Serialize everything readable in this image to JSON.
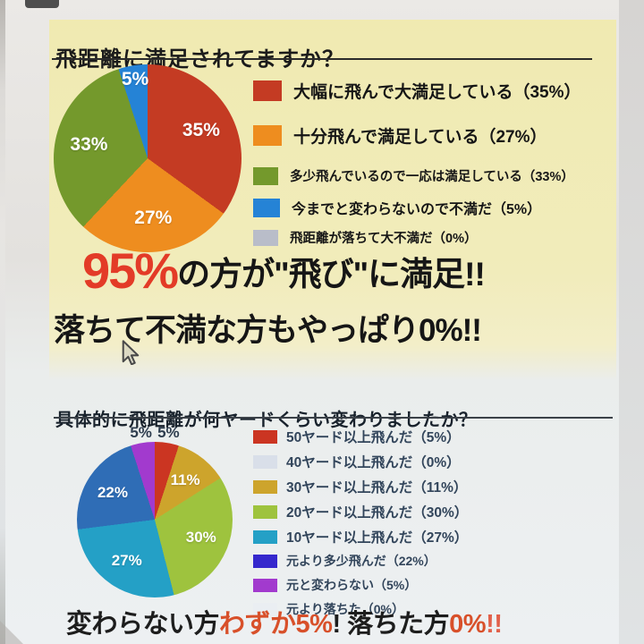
{
  "section1": {
    "title": "飛距離に満足されてますか？",
    "panel_color": "#f1ecba",
    "headline": {
      "line1_em": "95%",
      "line1_rest": "の方が\"飛び\"に満足!!",
      "line2": "落ちて不満な方もやっぱり0%!!",
      "em_color": "#e33b27"
    }
  },
  "section2": {
    "title": "具体的に飛距離が何ヤードくらい変わりましたか？",
    "footline": [
      {
        "text": "変わらない方",
        "color": "#1d1d1d"
      },
      {
        "text": "わずか5%",
        "color": "#d8502a"
      },
      {
        "text": "! ",
        "color": "#1d1d1d"
      },
      {
        "text": "落ちた方",
        "color": "#1d1d1d"
      },
      {
        "text": "0%",
        "color": "#d8502a"
      },
      {
        "text": "!!",
        "color": "#e2604a"
      }
    ]
  },
  "chart_data": [
    {
      "type": "pie",
      "title": "飛距離に満足されてますか？",
      "legend_position": "right",
      "direction": "clockwise",
      "start_angle_deg": 0,
      "small_label_outside": false,
      "items": [
        {
          "label": "大幅に飛んで大満足している（35%）",
          "value": 35,
          "color": "#c43b23"
        },
        {
          "label": "十分飛んで満足している（27%）",
          "value": 27,
          "color": "#ee8d1f"
        },
        {
          "label": "多少飛んでいるので一応は満足している（33%）",
          "value": 33,
          "color": "#74992c"
        },
        {
          "label": "今までと変わらないので不満だ（5%）",
          "value": 5,
          "color": "#2583d6"
        },
        {
          "label": "飛距離が落ちて大不満だ（0%）",
          "value": 0,
          "color": "#b9bdc9"
        }
      ]
    },
    {
      "type": "pie",
      "title": "具体的に飛距離が何ヤードくらい変わりましたか？",
      "legend_position": "right",
      "direction": "clockwise",
      "start_angle_deg": 0,
      "small_label_outside": true,
      "items": [
        {
          "label": "50ヤード以上飛んだ（5%）",
          "value": 5,
          "color": "#cb3522"
        },
        {
          "label": "40ヤード以上飛んだ（0%）",
          "value": 0,
          "color": "#d9dfe9"
        },
        {
          "label": "30ヤード以上飛んだ（11%）",
          "value": 11,
          "color": "#cda42c"
        },
        {
          "label": "20ヤード以上飛んだ（30%）",
          "value": 30,
          "color": "#9ec33e"
        },
        {
          "label": "10ヤード以上飛んだ（27%）",
          "value": 27,
          "color": "#24a0c6"
        },
        {
          "label": "元より多少飛んだ（22%）",
          "value": 22,
          "color": "#2f6db6",
          "swatch": "#3528cd"
        },
        {
          "label": "元と変わらない（5%）",
          "value": 5,
          "color": "#a23ace"
        },
        {
          "label": "元より落ちた（0%）",
          "value": 0,
          "color": "#eaeef2"
        }
      ]
    }
  ]
}
